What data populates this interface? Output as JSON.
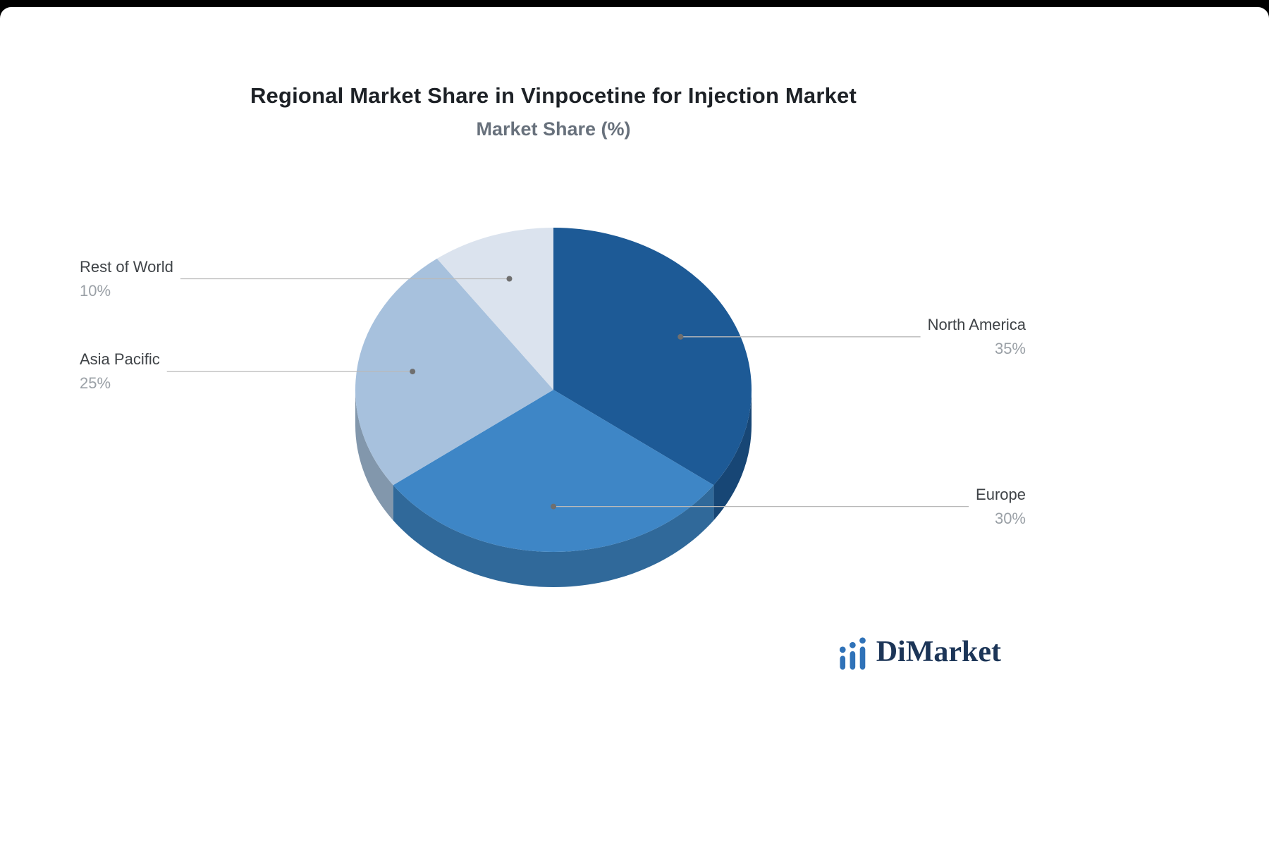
{
  "chart_data": {
    "type": "pie",
    "title": "Regional Market Share in Vinpocetine for Injection Market",
    "subtitle": "Market Share (%)",
    "unit": "%",
    "start_angle_deg": -90,
    "direction": "clockwise",
    "effect": "3d",
    "legend": "none",
    "labels": "outside-with-leader-lines",
    "background": "#ffffff",
    "slices": [
      {
        "name": "North America",
        "value": 35,
        "pct_label": "35%",
        "color": "#1d5a96",
        "side": "right"
      },
      {
        "name": "Europe",
        "value": 30,
        "pct_label": "30%",
        "color": "#3e86c6",
        "side": "right"
      },
      {
        "name": "Asia Pacific",
        "value": 25,
        "pct_label": "25%",
        "color": "#a7c1dd",
        "side": "left"
      },
      {
        "name": "Rest of World",
        "value": 10,
        "pct_label": "10%",
        "color": "#dbe3ee",
        "side": "left"
      }
    ],
    "style": {
      "leader_line_color": "#b9b9b9",
      "dot_color": "#6f6f6f",
      "label_color": "#3f4347",
      "value_color": "#9aa0a6"
    }
  },
  "brand": {
    "name": "DiMarket",
    "text_color": "#1c3557",
    "icon_color": "#2f72b8"
  }
}
